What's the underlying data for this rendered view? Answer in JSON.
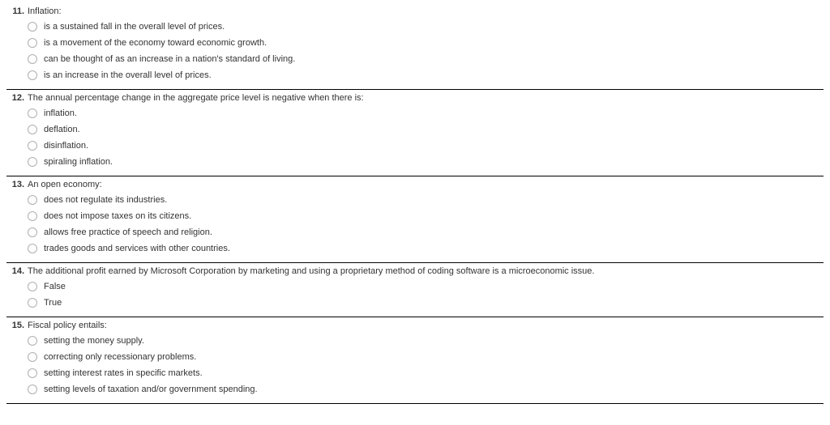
{
  "questions": [
    {
      "number": "11.",
      "text": "Inflation:",
      "options": [
        "is a sustained fall in the overall level of prices.",
        "is a movement of the economy toward economic growth.",
        "can be thought of as an increase in a nation's standard of living.",
        "is an increase in the overall level of prices."
      ]
    },
    {
      "number": "12.",
      "text": "The annual percentage change in the aggregate price level is negative when there is:",
      "options": [
        "inflation.",
        "deflation.",
        "disinflation.",
        "spiraling inflation."
      ]
    },
    {
      "number": "13.",
      "text": "An open economy:",
      "options": [
        "does not regulate its industries.",
        "does not impose taxes on its citizens.",
        "allows free practice of speech and religion.",
        "trades goods and services with other countries."
      ]
    },
    {
      "number": "14.",
      "text": "The additional profit earned by Microsoft Corporation by marketing and using a proprietary method of coding software is a microeconomic issue.",
      "options": [
        "False",
        "True"
      ]
    },
    {
      "number": "15.",
      "text": "Fiscal policy entails:",
      "options": [
        "setting the money supply.",
        "correcting only recessionary problems.",
        "setting interest rates in specific markets.",
        "setting levels of taxation and/or government spending."
      ]
    }
  ]
}
